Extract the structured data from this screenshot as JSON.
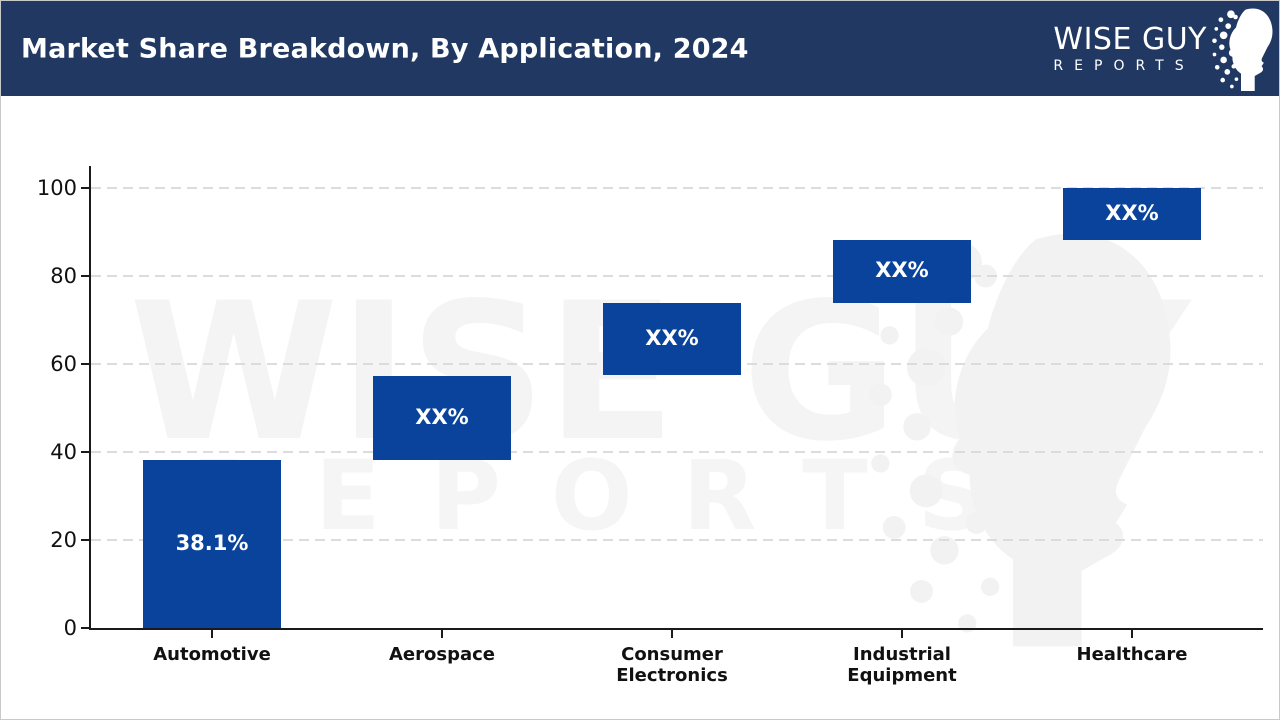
{
  "header": {
    "title": "Market Share Breakdown, By Application, 2024",
    "bg_color": "#213962",
    "logo": {
      "wordmark": "WISE GUY",
      "subtitle": "REPORTS",
      "head_icon": "dotted-head-profile-icon"
    }
  },
  "watermark": {
    "wordmark": "WISE GUY",
    "subtitle": "REPORTS",
    "head_icon": "dotted-head-profile-icon"
  },
  "chart_data": {
    "type": "bar",
    "subtype": "waterfall",
    "title": "Market Share Breakdown, By Application, 2024",
    "xlabel": "",
    "ylabel": "",
    "ylim": [
      0,
      100
    ],
    "yticks": [
      0,
      20,
      40,
      60,
      80,
      100
    ],
    "grid": "horizontal-dashed",
    "legend": "none",
    "bar_color": "#09439b",
    "label_color": "#ffffff",
    "categories": [
      "Automotive",
      "Aerospace",
      "Consumer Electronics",
      "Industrial Equipment",
      "Healthcare"
    ],
    "segments": [
      {
        "category_lines": [
          "Automotive"
        ],
        "start": 0,
        "end": 38.1,
        "label": "38.1%"
      },
      {
        "category_lines": [
          "Aerospace"
        ],
        "start": 38.1,
        "end": 57.3,
        "label": "XX%"
      },
      {
        "category_lines": [
          "Consumer",
          "Electronics"
        ],
        "start": 57.5,
        "end": 73.9,
        "label": "XX%"
      },
      {
        "category_lines": [
          "Industrial",
          "Equipment"
        ],
        "start": 73.9,
        "end": 88.2,
        "label": "XX%"
      },
      {
        "category_lines": [
          "Healthcare"
        ],
        "start": 88.2,
        "end": 100,
        "label": "XX%"
      }
    ]
  }
}
